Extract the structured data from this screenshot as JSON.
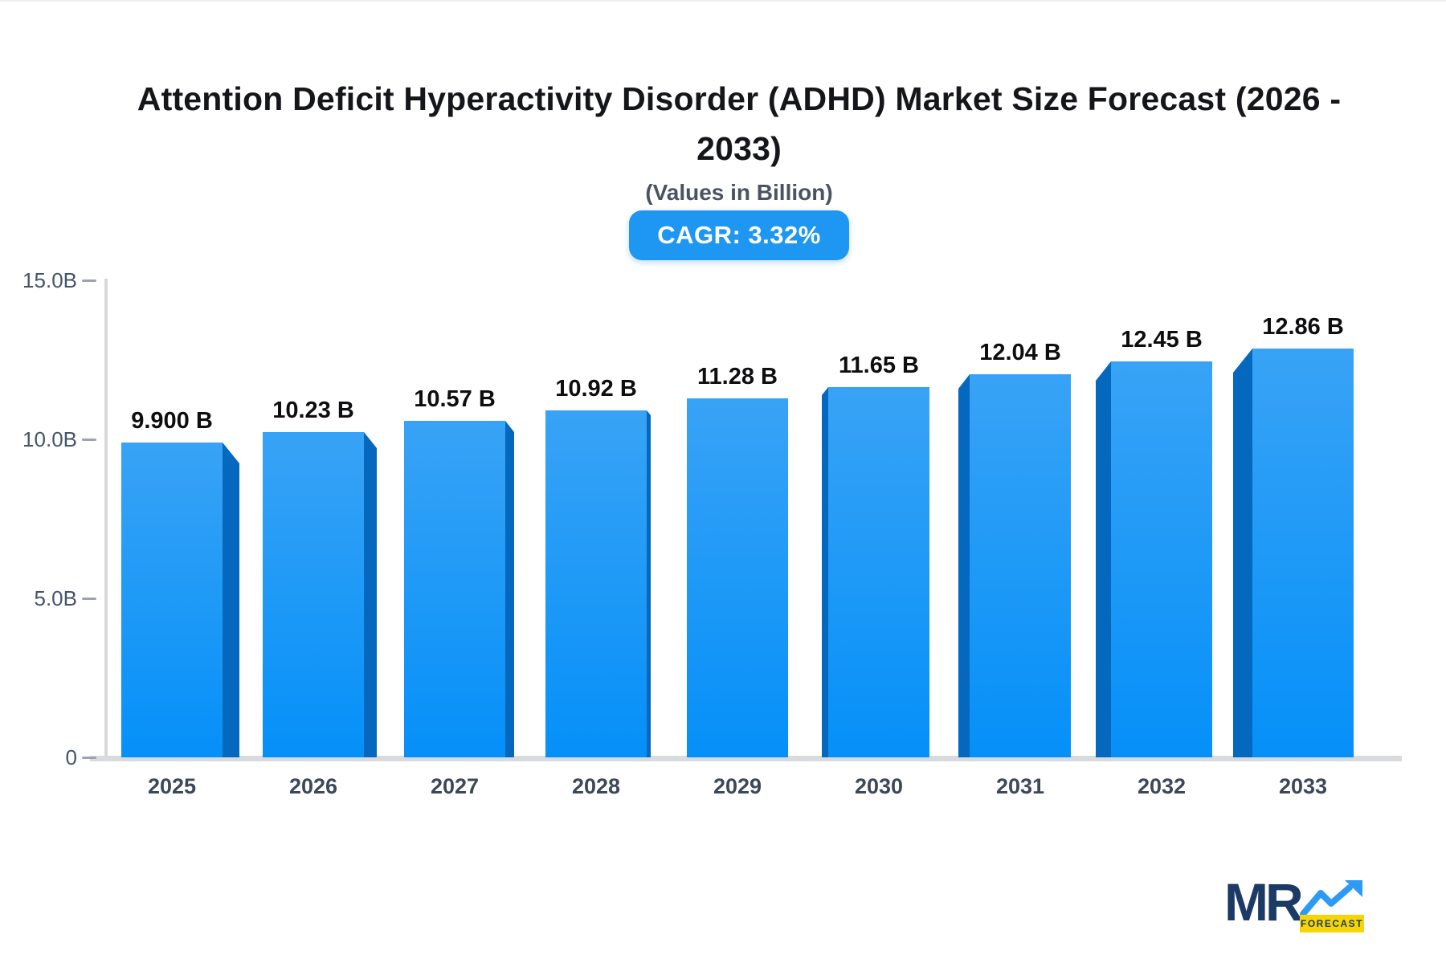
{
  "header": {
    "title_line1": "Attention Deficit Hyperactivity Disorder (ADHD) Market Size Forecast (2026 -",
    "title_line2": "2033)",
    "subtitle": "(Values in Billion)",
    "cagr_label": "CAGR: 3.32%"
  },
  "chart_data": {
    "type": "bar",
    "title": "Attention Deficit Hyperactivity Disorder (ADHD) Market Size Forecast (2026 - 2033)",
    "subtitle": "(Values in Billion)",
    "cagr": "3.32%",
    "categories": [
      "2025",
      "2026",
      "2027",
      "2028",
      "2029",
      "2030",
      "2031",
      "2032",
      "2033"
    ],
    "values": [
      9.9,
      10.23,
      10.57,
      10.92,
      11.28,
      11.65,
      12.04,
      12.45,
      12.86
    ],
    "value_labels": [
      "9.900 B",
      "10.23 B",
      "10.57 B",
      "10.92 B",
      "11.28 B",
      "11.65 B",
      "12.04 B",
      "12.45 B",
      "12.86 B"
    ],
    "xlabel": "",
    "ylabel": "",
    "ylim": [
      0,
      15
    ],
    "yticks": [
      {
        "value": 15,
        "label": "15.0B"
      },
      {
        "value": 10,
        "label": "10.0B"
      },
      {
        "value": 5,
        "label": "5.0B"
      },
      {
        "value": 0,
        "label": "0"
      }
    ],
    "grid": false,
    "legend": false
  },
  "colors": {
    "bar_face_top": "#38a3f6",
    "bar_face_bottom": "#0590f8",
    "bar_side": "#0568bf",
    "badge_bg": "#1e97f2",
    "axis_line": "#d6d7db",
    "tick_label": "#46536b",
    "year_label": "#3c4859",
    "value_label": "#0e0e10",
    "logo_navy": "#1c3a66",
    "logo_blue": "#2d9bf3",
    "logo_yellow": "#f6d502"
  },
  "logo": {
    "mr": "MR",
    "forecast": "FORECAST",
    "arrow_icon": "trend-up-arrow-icon"
  }
}
